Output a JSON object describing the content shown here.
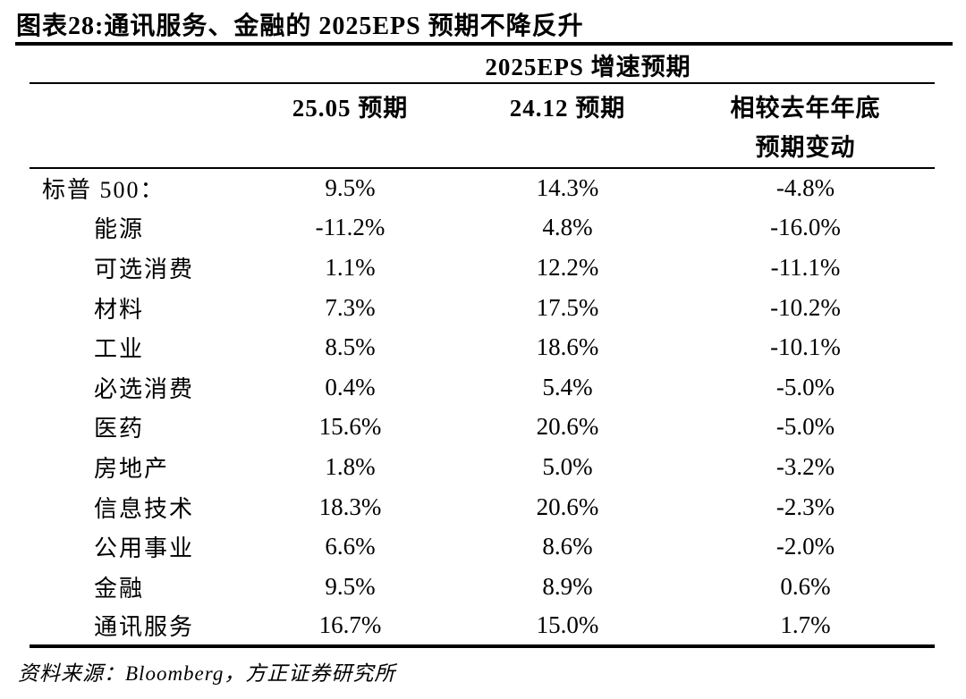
{
  "title": "图表28:通讯服务、金融的 2025EPS 预期不降反升",
  "table": {
    "group_header": "2025EPS 增速预期",
    "columns": {
      "col1": "25.05 预期",
      "col2": "24.12 预期",
      "col3": {
        "line1": "相较去年年底",
        "line2": "预期变动"
      }
    },
    "rows": [
      {
        "label": "标普 500：",
        "indent": false,
        "values": [
          "9.5%",
          "14.3%",
          "-4.8%"
        ]
      },
      {
        "label": "能源",
        "indent": true,
        "values": [
          "-11.2%",
          "4.8%",
          "-16.0%"
        ]
      },
      {
        "label": "可选消费",
        "indent": true,
        "values": [
          "1.1%",
          "12.2%",
          "-11.1%"
        ]
      },
      {
        "label": "材料",
        "indent": true,
        "values": [
          "7.3%",
          "17.5%",
          "-10.2%"
        ]
      },
      {
        "label": "工业",
        "indent": true,
        "values": [
          "8.5%",
          "18.6%",
          "-10.1%"
        ]
      },
      {
        "label": "必选消费",
        "indent": true,
        "values": [
          "0.4%",
          "5.4%",
          "-5.0%"
        ]
      },
      {
        "label": "医药",
        "indent": true,
        "values": [
          "15.6%",
          "20.6%",
          "-5.0%"
        ]
      },
      {
        "label": "房地产",
        "indent": true,
        "values": [
          "1.8%",
          "5.0%",
          "-3.2%"
        ]
      },
      {
        "label": "信息技术",
        "indent": true,
        "values": [
          "18.3%",
          "20.6%",
          "-2.3%"
        ]
      },
      {
        "label": "公用事业",
        "indent": true,
        "values": [
          "6.6%",
          "8.6%",
          "-2.0%"
        ]
      },
      {
        "label": "金融",
        "indent": true,
        "values": [
          "9.5%",
          "8.9%",
          "0.6%"
        ]
      },
      {
        "label": "通讯服务",
        "indent": true,
        "values": [
          "16.7%",
          "15.0%",
          "1.7%"
        ]
      }
    ]
  },
  "source": "资料来源：Bloomberg，方正证券研究所",
  "colors": {
    "text": "#000000",
    "background": "#ffffff",
    "rule": "#000000"
  }
}
